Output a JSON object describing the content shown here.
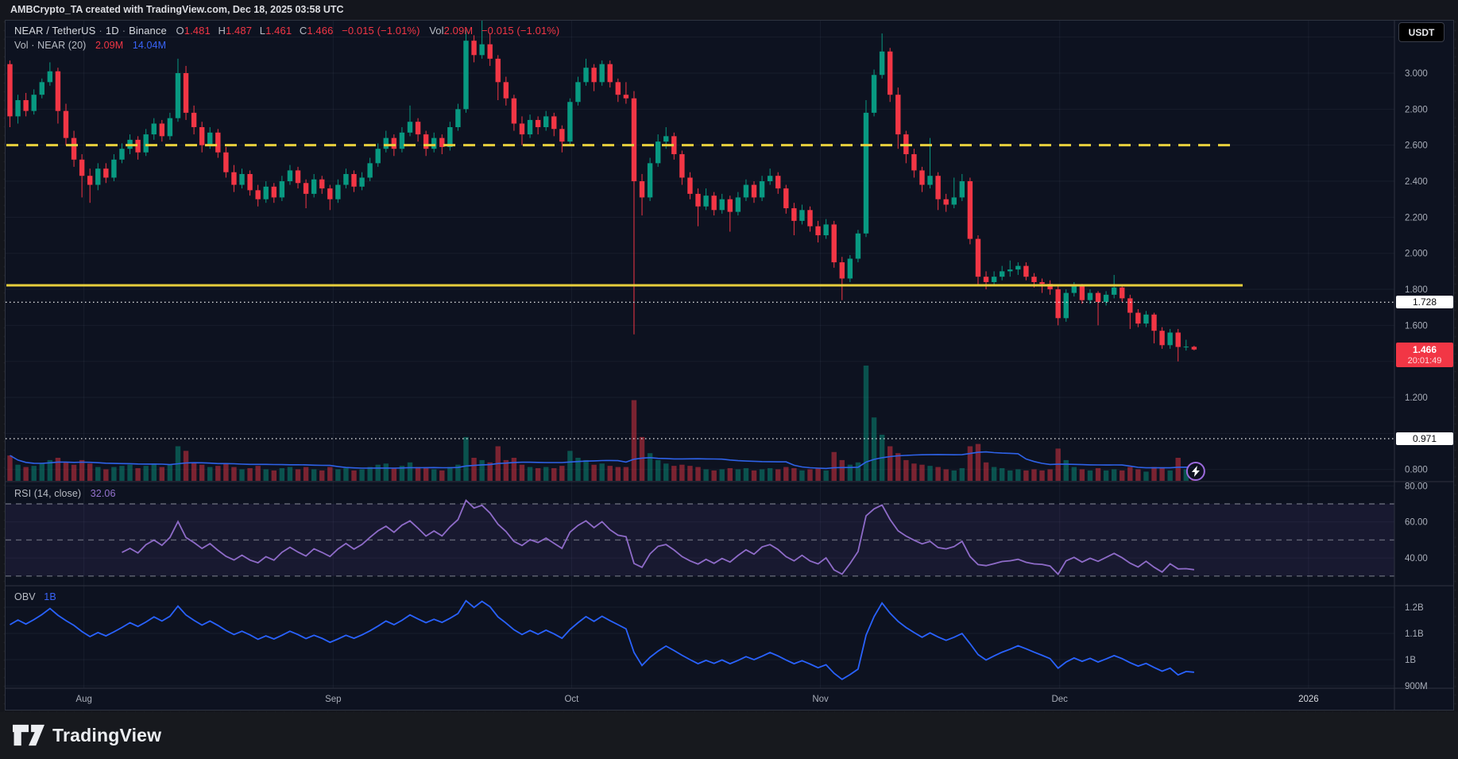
{
  "header": {
    "attribution": "AMBCrypto_TA created with TradingView.com, Dec 18, 2025 03:58 UTC"
  },
  "legend_main": {
    "symbol": "NEAR / TetherUS",
    "interval": "1D",
    "exchange": "Binance",
    "o_label": "O",
    "o": "1.481",
    "h_label": "H",
    "h": "1.487",
    "l_label": "L",
    "l": "1.461",
    "c_label": "C",
    "c": "1.466",
    "change": "−0.015 (−1.01%)",
    "vol_label": "Vol",
    "vol": "2.09M",
    "change2": "−0.015 (−1.01%)"
  },
  "legend_volume": {
    "label": "Vol · NEAR (20)",
    "value": "2.09M",
    "ma_value": "14.04M"
  },
  "legend_rsi": {
    "label": "RSI (14, close)",
    "value": "32.06"
  },
  "legend_obv": {
    "label": "OBV",
    "value": "1B"
  },
  "axis_currency_button": "USDT",
  "badges": {
    "level_high": {
      "text": "1.728"
    },
    "last_price": {
      "text": "1.466",
      "countdown": "20:01:49"
    },
    "level_low": {
      "text": "0.971"
    }
  },
  "bottom_logo_text": "TradingView",
  "colors": {
    "up": "#089981",
    "down": "#f23645",
    "vol_up": "rgba(8,153,129,0.48)",
    "vol_down": "rgba(242,54,69,0.48)",
    "vol_ma": "#2e62e8",
    "obv": "#2962ff",
    "rsi": "#8e6bc8",
    "rsi_band": "rgba(126,87,194,0.10)",
    "rsi_dash": "rgba(205,210,218,0.42)",
    "yellow": "#e8cf3d",
    "grid": "rgba(151,161,185,0.08)",
    "frame": "#2e3340",
    "axis_text": "#a8adb8",
    "axis_text_bright": "#d7d9de",
    "bg": "#0d1220",
    "white_dotted": "rgba(255,255,255,0.85)"
  },
  "chart_data": {
    "type": "candlestick",
    "title": "NEAR / TetherUS · 1D · Binance",
    "price_axis_ticks": [
      3.0,
      2.8,
      2.6,
      2.4,
      2.2,
      2.0,
      1.8,
      1.6,
      1.2,
      0.8
    ],
    "price_axis_tick_labels": [
      "3.000",
      "2.800",
      "2.600",
      "2.400",
      "2.200",
      "2.000",
      "1.800",
      "1.600",
      "1.200",
      "0.800"
    ],
    "rsi_axis_ticks": [
      {
        "v": 80,
        "label": "80.00"
      },
      {
        "v": 60,
        "label": "60.00"
      },
      {
        "v": 40,
        "label": "40.00"
      }
    ],
    "obv_axis_ticks": [
      {
        "v": 1.2,
        "label": "1.2B"
      },
      {
        "v": 1.1,
        "label": "1.1B"
      },
      {
        "v": 1.0,
        "label": "1B"
      },
      {
        "v": 0.9,
        "label": "900M"
      }
    ],
    "time_axis_months": [
      {
        "label": "Aug",
        "index": 9.25,
        "bright": false
      },
      {
        "label": "Sep",
        "index": 40.4,
        "bright": false
      },
      {
        "label": "Oct",
        "index": 70.2,
        "bright": false
      },
      {
        "label": "Nov",
        "index": 101.3,
        "bright": false
      },
      {
        "label": "Dec",
        "index": 131.2,
        "bright": false
      },
      {
        "label": "2026",
        "index": 162.3,
        "bright": true
      }
    ],
    "levels": {
      "resistance_dashed_yellow": 2.6,
      "support_solid_yellow": 1.822,
      "dotted_white_upper": 1.728,
      "dotted_white_lower": 0.971,
      "last_price": 1.466
    },
    "indicators": {
      "volume_ma": {
        "period": 20,
        "current_m": 14.04
      },
      "rsi": {
        "period": 14,
        "source": "close",
        "current": 32.06,
        "bands": [
          70,
          50,
          30
        ]
      },
      "obv": {
        "current": "1B"
      }
    },
    "candles_note": "per bar: [open, high, low, close, volume_millions], daily Jul 23 - Dec 18 2025",
    "candles": [
      [
        3.05,
        3.07,
        2.7,
        2.76,
        22
      ],
      [
        2.76,
        2.88,
        2.72,
        2.85,
        14
      ],
      [
        2.85,
        2.89,
        2.76,
        2.79,
        12
      ],
      [
        2.79,
        2.91,
        2.77,
        2.88,
        13
      ],
      [
        2.88,
        2.97,
        2.86,
        2.95,
        15
      ],
      [
        2.95,
        3.06,
        2.93,
        3.01,
        18
      ],
      [
        3.01,
        3.03,
        2.72,
        2.79,
        20
      ],
      [
        2.79,
        2.83,
        2.6,
        2.64,
        16
      ],
      [
        2.64,
        2.68,
        2.48,
        2.52,
        14
      ],
      [
        2.52,
        2.55,
        2.31,
        2.43,
        18
      ],
      [
        2.43,
        2.47,
        2.28,
        2.38,
        15
      ],
      [
        2.38,
        2.5,
        2.35,
        2.47,
        12
      ],
      [
        2.47,
        2.5,
        2.39,
        2.42,
        10
      ],
      [
        2.42,
        2.55,
        2.4,
        2.52,
        12
      ],
      [
        2.52,
        2.61,
        2.5,
        2.58,
        13
      ],
      [
        2.58,
        2.66,
        2.55,
        2.63,
        14
      ],
      [
        2.63,
        2.65,
        2.52,
        2.56,
        11
      ],
      [
        2.56,
        2.69,
        2.54,
        2.66,
        13
      ],
      [
        2.66,
        2.75,
        2.63,
        2.72,
        15
      ],
      [
        2.72,
        2.74,
        2.62,
        2.65,
        12
      ],
      [
        2.65,
        2.78,
        2.63,
        2.75,
        14
      ],
      [
        2.75,
        3.08,
        2.73,
        3.0,
        30
      ],
      [
        3.0,
        3.04,
        2.74,
        2.78,
        26
      ],
      [
        2.78,
        2.82,
        2.66,
        2.7,
        16
      ],
      [
        2.7,
        2.73,
        2.56,
        2.6,
        14
      ],
      [
        2.6,
        2.7,
        2.58,
        2.67,
        12
      ],
      [
        2.67,
        2.69,
        2.53,
        2.56,
        13
      ],
      [
        2.56,
        2.59,
        2.42,
        2.45,
        15
      ],
      [
        2.45,
        2.49,
        2.34,
        2.38,
        12
      ],
      [
        2.38,
        2.47,
        2.36,
        2.44,
        10
      ],
      [
        2.44,
        2.46,
        2.32,
        2.35,
        11
      ],
      [
        2.35,
        2.38,
        2.26,
        2.3,
        13
      ],
      [
        2.3,
        2.4,
        2.28,
        2.37,
        10
      ],
      [
        2.37,
        2.39,
        2.28,
        2.31,
        9
      ],
      [
        2.31,
        2.43,
        2.29,
        2.4,
        11
      ],
      [
        2.4,
        2.49,
        2.38,
        2.46,
        12
      ],
      [
        2.46,
        2.48,
        2.36,
        2.39,
        10
      ],
      [
        2.39,
        2.41,
        2.25,
        2.33,
        12
      ],
      [
        2.33,
        2.44,
        2.31,
        2.41,
        10
      ],
      [
        2.41,
        2.43,
        2.33,
        2.36,
        9
      ],
      [
        2.36,
        2.38,
        2.24,
        2.3,
        12
      ],
      [
        2.3,
        2.41,
        2.28,
        2.38,
        10
      ],
      [
        2.38,
        2.47,
        2.36,
        2.44,
        11
      ],
      [
        2.44,
        2.46,
        2.34,
        2.37,
        9
      ],
      [
        2.37,
        2.45,
        2.35,
        2.42,
        10
      ],
      [
        2.42,
        2.53,
        2.4,
        2.5,
        12
      ],
      [
        2.5,
        2.61,
        2.48,
        2.58,
        14
      ],
      [
        2.58,
        2.68,
        2.56,
        2.64,
        15
      ],
      [
        2.64,
        2.66,
        2.54,
        2.58,
        11
      ],
      [
        2.58,
        2.7,
        2.56,
        2.67,
        13
      ],
      [
        2.67,
        2.82,
        2.65,
        2.73,
        16
      ],
      [
        2.73,
        2.75,
        2.62,
        2.66,
        12
      ],
      [
        2.66,
        2.68,
        2.54,
        2.58,
        11
      ],
      [
        2.58,
        2.67,
        2.56,
        2.64,
        10
      ],
      [
        2.64,
        2.66,
        2.55,
        2.59,
        9
      ],
      [
        2.59,
        2.73,
        2.57,
        2.7,
        12
      ],
      [
        2.7,
        2.83,
        2.68,
        2.8,
        14
      ],
      [
        2.8,
        3.24,
        2.78,
        3.18,
        38
      ],
      [
        3.18,
        3.21,
        3.06,
        3.1,
        20
      ],
      [
        3.1,
        3.3,
        3.08,
        3.16,
        18
      ],
      [
        3.16,
        3.22,
        3.04,
        3.08,
        16
      ],
      [
        3.08,
        3.1,
        2.85,
        2.95,
        30
      ],
      [
        2.95,
        2.98,
        2.82,
        2.86,
        18
      ],
      [
        2.86,
        2.88,
        2.68,
        2.72,
        20
      ],
      [
        2.72,
        2.76,
        2.6,
        2.66,
        14
      ],
      [
        2.66,
        2.77,
        2.64,
        2.74,
        12
      ],
      [
        2.74,
        2.76,
        2.66,
        2.7,
        11
      ],
      [
        2.7,
        2.79,
        2.68,
        2.76,
        12
      ],
      [
        2.76,
        2.78,
        2.65,
        2.69,
        11
      ],
      [
        2.69,
        2.71,
        2.56,
        2.62,
        13
      ],
      [
        2.62,
        2.86,
        2.6,
        2.84,
        26
      ],
      [
        2.84,
        2.98,
        2.82,
        2.95,
        20
      ],
      [
        2.95,
        3.08,
        2.93,
        3.03,
        18
      ],
      [
        3.03,
        3.05,
        2.9,
        2.95,
        14
      ],
      [
        2.95,
        3.07,
        2.93,
        3.05,
        15
      ],
      [
        3.05,
        3.07,
        2.92,
        2.95,
        13
      ],
      [
        2.95,
        2.97,
        2.84,
        2.88,
        12
      ],
      [
        2.88,
        2.95,
        2.83,
        2.86,
        12
      ],
      [
        2.86,
        2.9,
        1.55,
        2.4,
        70
      ],
      [
        2.4,
        2.44,
        2.21,
        2.31,
        38
      ],
      [
        2.31,
        2.53,
        2.29,
        2.5,
        24
      ],
      [
        2.5,
        2.66,
        2.48,
        2.62,
        18
      ],
      [
        2.62,
        2.7,
        2.58,
        2.65,
        15
      ],
      [
        2.65,
        2.67,
        2.52,
        2.55,
        13
      ],
      [
        2.55,
        2.57,
        2.38,
        2.42,
        14
      ],
      [
        2.42,
        2.45,
        2.3,
        2.33,
        13
      ],
      [
        2.33,
        2.36,
        2.15,
        2.26,
        12
      ],
      [
        2.26,
        2.36,
        2.24,
        2.32,
        10
      ],
      [
        2.32,
        2.34,
        2.21,
        2.24,
        9
      ],
      [
        2.24,
        2.33,
        2.22,
        2.3,
        10
      ],
      [
        2.3,
        2.32,
        2.12,
        2.23,
        11
      ],
      [
        2.23,
        2.34,
        2.21,
        2.31,
        10
      ],
      [
        2.31,
        2.41,
        2.29,
        2.38,
        11
      ],
      [
        2.38,
        2.4,
        2.28,
        2.31,
        9
      ],
      [
        2.31,
        2.43,
        2.29,
        2.4,
        10
      ],
      [
        2.4,
        2.47,
        2.38,
        2.43,
        11
      ],
      [
        2.43,
        2.45,
        2.33,
        2.36,
        10
      ],
      [
        2.36,
        2.38,
        2.22,
        2.25,
        12
      ],
      [
        2.25,
        2.28,
        2.1,
        2.18,
        11
      ],
      [
        2.18,
        2.27,
        2.16,
        2.24,
        9
      ],
      [
        2.24,
        2.26,
        2.12,
        2.15,
        10
      ],
      [
        2.15,
        2.18,
        2.06,
        2.1,
        11
      ],
      [
        2.1,
        2.19,
        2.08,
        2.16,
        9
      ],
      [
        2.16,
        2.18,
        1.92,
        1.95,
        25
      ],
      [
        1.95,
        1.98,
        1.74,
        1.86,
        18
      ],
      [
        1.86,
        1.99,
        1.84,
        1.97,
        14
      ],
      [
        1.97,
        2.13,
        1.95,
        2.11,
        16
      ],
      [
        2.11,
        2.85,
        2.09,
        2.78,
        100
      ],
      [
        2.78,
        3.02,
        2.76,
        2.99,
        55
      ],
      [
        2.99,
        3.22,
        2.97,
        3.12,
        40
      ],
      [
        3.12,
        3.14,
        2.84,
        2.88,
        30
      ],
      [
        2.88,
        2.92,
        2.58,
        2.66,
        24
      ],
      [
        2.66,
        2.68,
        2.5,
        2.55,
        18
      ],
      [
        2.55,
        2.58,
        2.42,
        2.46,
        15
      ],
      [
        2.46,
        2.48,
        2.34,
        2.38,
        14
      ],
      [
        2.38,
        2.64,
        2.36,
        2.43,
        13
      ],
      [
        2.43,
        2.45,
        2.24,
        2.3,
        12
      ],
      [
        2.3,
        2.33,
        2.23,
        2.27,
        10
      ],
      [
        2.27,
        2.42,
        2.25,
        2.31,
        9
      ],
      [
        2.31,
        2.44,
        2.29,
        2.4,
        11
      ],
      [
        2.4,
        2.42,
        2.05,
        2.08,
        30
      ],
      [
        2.08,
        2.1,
        1.82,
        1.87,
        32
      ],
      [
        1.87,
        1.9,
        1.8,
        1.84,
        16
      ],
      [
        1.84,
        1.9,
        1.82,
        1.87,
        12
      ],
      [
        1.87,
        1.93,
        1.85,
        1.9,
        11
      ],
      [
        1.9,
        1.96,
        1.87,
        1.91,
        9
      ],
      [
        1.91,
        1.95,
        1.88,
        1.93,
        10
      ],
      [
        1.93,
        1.95,
        1.85,
        1.87,
        9
      ],
      [
        1.87,
        1.89,
        1.81,
        1.84,
        10
      ],
      [
        1.84,
        1.86,
        1.78,
        1.83,
        9
      ],
      [
        1.83,
        1.85,
        1.77,
        1.8,
        10
      ],
      [
        1.8,
        1.82,
        1.6,
        1.64,
        28
      ],
      [
        1.64,
        1.8,
        1.62,
        1.78,
        18
      ],
      [
        1.78,
        1.84,
        1.76,
        1.82,
        12
      ],
      [
        1.82,
        1.83,
        1.72,
        1.74,
        10
      ],
      [
        1.74,
        1.8,
        1.72,
        1.78,
        9
      ],
      [
        1.78,
        1.79,
        1.6,
        1.73,
        11
      ],
      [
        1.73,
        1.79,
        1.71,
        1.77,
        9
      ],
      [
        1.77,
        1.88,
        1.75,
        1.81,
        10
      ],
      [
        1.81,
        1.82,
        1.73,
        1.75,
        9
      ],
      [
        1.75,
        1.77,
        1.58,
        1.67,
        12
      ],
      [
        1.67,
        1.69,
        1.59,
        1.61,
        10
      ],
      [
        1.61,
        1.68,
        1.59,
        1.66,
        8
      ],
      [
        1.66,
        1.67,
        1.5,
        1.57,
        12
      ],
      [
        1.57,
        1.59,
        1.47,
        1.49,
        11
      ],
      [
        1.49,
        1.58,
        1.47,
        1.56,
        9
      ],
      [
        1.56,
        1.58,
        1.4,
        1.48,
        20
      ],
      [
        1.48,
        1.52,
        1.46,
        1.482,
        10
      ],
      [
        1.481,
        1.487,
        1.461,
        1.466,
        2.09
      ]
    ]
  }
}
